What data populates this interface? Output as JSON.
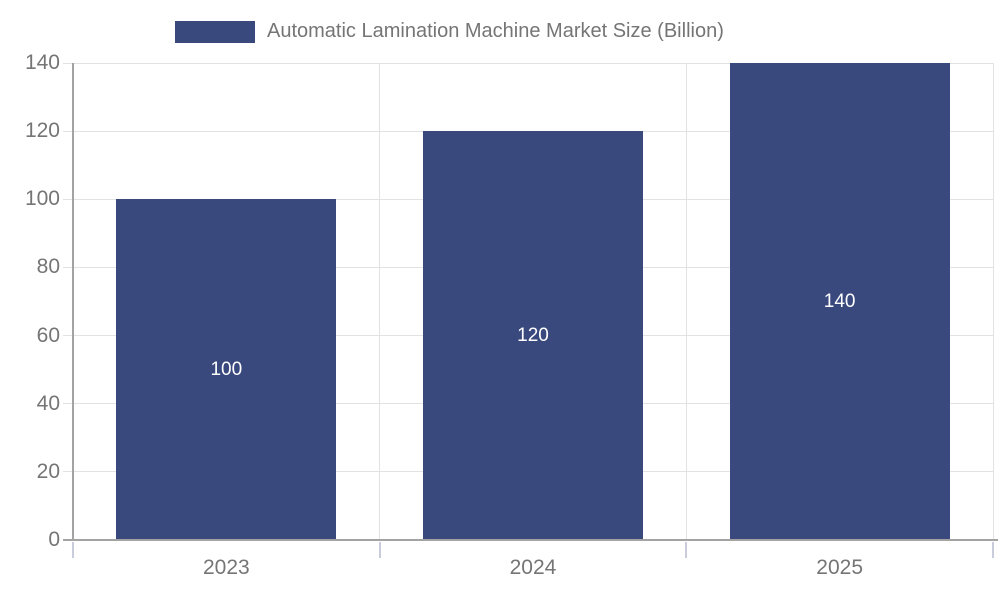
{
  "chart_data": {
    "type": "bar",
    "title": "Automatic Lamination Machine Market Size (Billion)",
    "categories": [
      "2023",
      "2024",
      "2025"
    ],
    "values": [
      100,
      120,
      140
    ],
    "series": [
      {
        "name": "Automatic Lamination Machine Market Size (Billion)",
        "values": [
          100,
          120,
          140
        ]
      }
    ],
    "xlabel": "",
    "ylabel": "",
    "ylim": [
      0,
      140
    ],
    "yticks": [
      0,
      20,
      40,
      60,
      80,
      100,
      120,
      140
    ],
    "grid": true,
    "legend_position": "top",
    "bar_value_labels_shown": true,
    "colors": {
      "bar": "#39497E",
      "bar_label": "#FFFFFF",
      "grid": "#E2E2E2",
      "axis": "#A3A3A3",
      "tick": "#C9CCDA",
      "text": "#757575",
      "background": "#FFFFFF"
    }
  }
}
